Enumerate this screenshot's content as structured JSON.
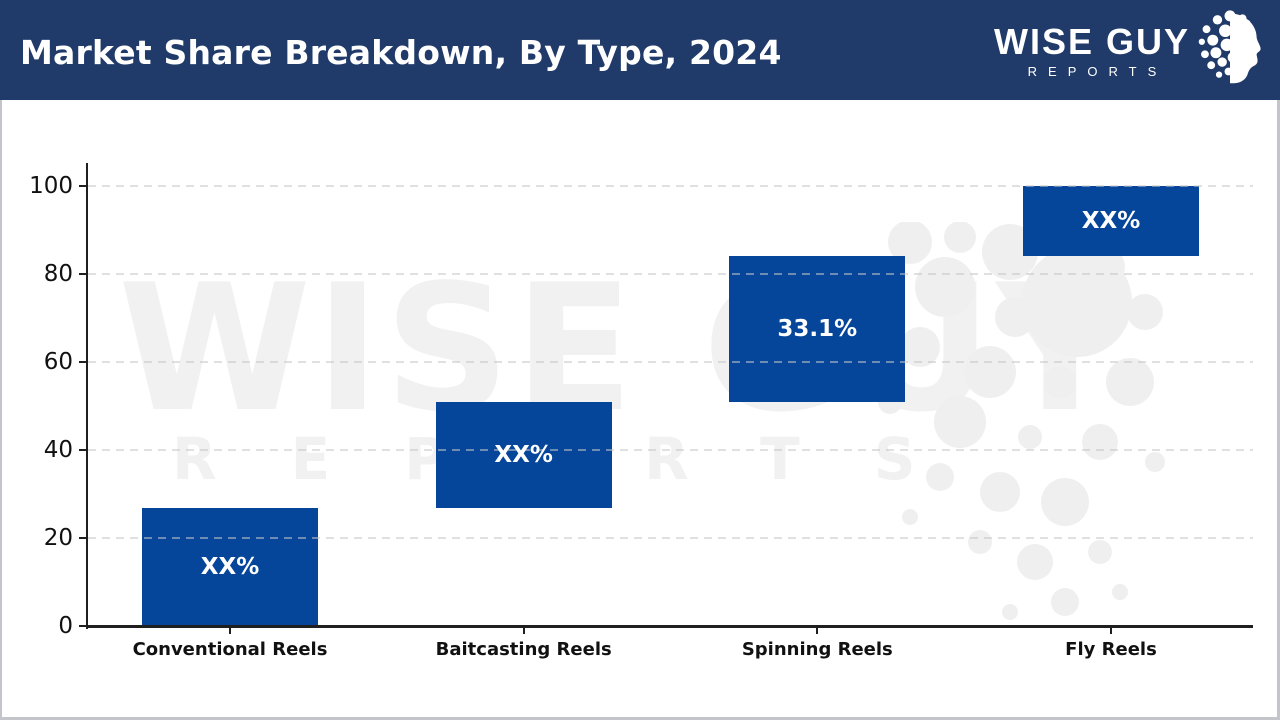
{
  "page": {
    "background": "#ffffff",
    "border_color": "#c3c5cb"
  },
  "header": {
    "background": "#203a69",
    "title": "Market Share Breakdown, By Type, 2024",
    "logo": {
      "line1": "WISE GUY",
      "line2": "REPORTS"
    }
  },
  "watermark": {
    "line1": "WISE GUY",
    "line2": "REPORTS"
  },
  "chart_data": {
    "type": "bar",
    "variant": "waterfall",
    "title": "Market Share Breakdown, By Type, 2024",
    "categories": [
      "Conventional Reels",
      "Baitcasting Reels",
      "Spinning Reels",
      "Fly Reels"
    ],
    "series": [
      {
        "name": "Market share (%)",
        "segments": [
          {
            "category": "Conventional Reels",
            "start": 0,
            "end": 26.9,
            "value": 26.9,
            "label": "XX%"
          },
          {
            "category": "Baitcasting Reels",
            "start": 26.9,
            "end": 51.0,
            "value": 24.1,
            "label": "XX%"
          },
          {
            "category": "Spinning Reels",
            "start": 51.0,
            "end": 84.1,
            "value": 33.1,
            "label": "33.1%"
          },
          {
            "category": "Fly Reels",
            "start": 84.1,
            "end": 100.0,
            "value": 15.9,
            "label": "XX%"
          }
        ]
      }
    ],
    "xlabel": "",
    "ylabel": "",
    "ylim": [
      0,
      105
    ],
    "yticks": [
      0,
      20,
      40,
      60,
      80,
      100
    ],
    "grid": "horizontal-dashed-over-bars",
    "legend": "none",
    "bar_color": "#05459a",
    "bar_label_color": "#ffffff",
    "axis_color": "#1f1f1f"
  }
}
